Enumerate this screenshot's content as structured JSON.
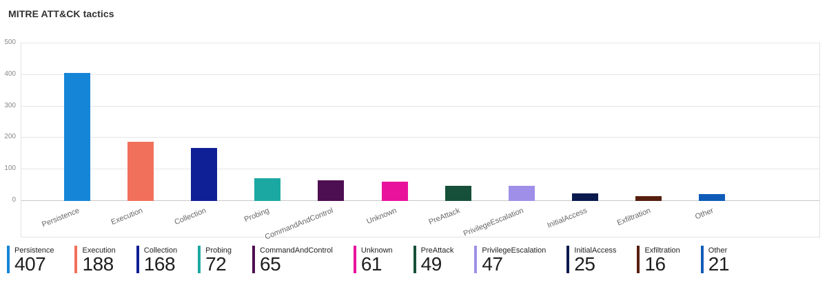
{
  "title": "MITRE ATT&CK tactics",
  "chart_data": {
    "type": "bar",
    "title": "MITRE ATT&CK tactics",
    "categories": [
      "Persistence",
      "Execution",
      "Collection",
      "Probing",
      "CommandAndControl",
      "Unknown",
      "PreAttack",
      "PrivilegeEscalation",
      "InitialAccess",
      "Exfiltration",
      "Other"
    ],
    "values": [
      407,
      188,
      168,
      72,
      65,
      61,
      49,
      47,
      25,
      16,
      21
    ],
    "colors": [
      "#1585d8",
      "#f1705b",
      "#0f1f96",
      "#1ba8a2",
      "#4e0e52",
      "#e9129c",
      "#17503a",
      "#9f8fe8",
      "#0b1a4e",
      "#571f0f",
      "#0f5cb8"
    ],
    "xlabel": "",
    "ylabel": "",
    "ylim": [
      0,
      500
    ],
    "yticks": [
      0,
      100,
      200,
      300,
      400,
      500
    ],
    "grid": true,
    "legend_position": "bottom"
  }
}
